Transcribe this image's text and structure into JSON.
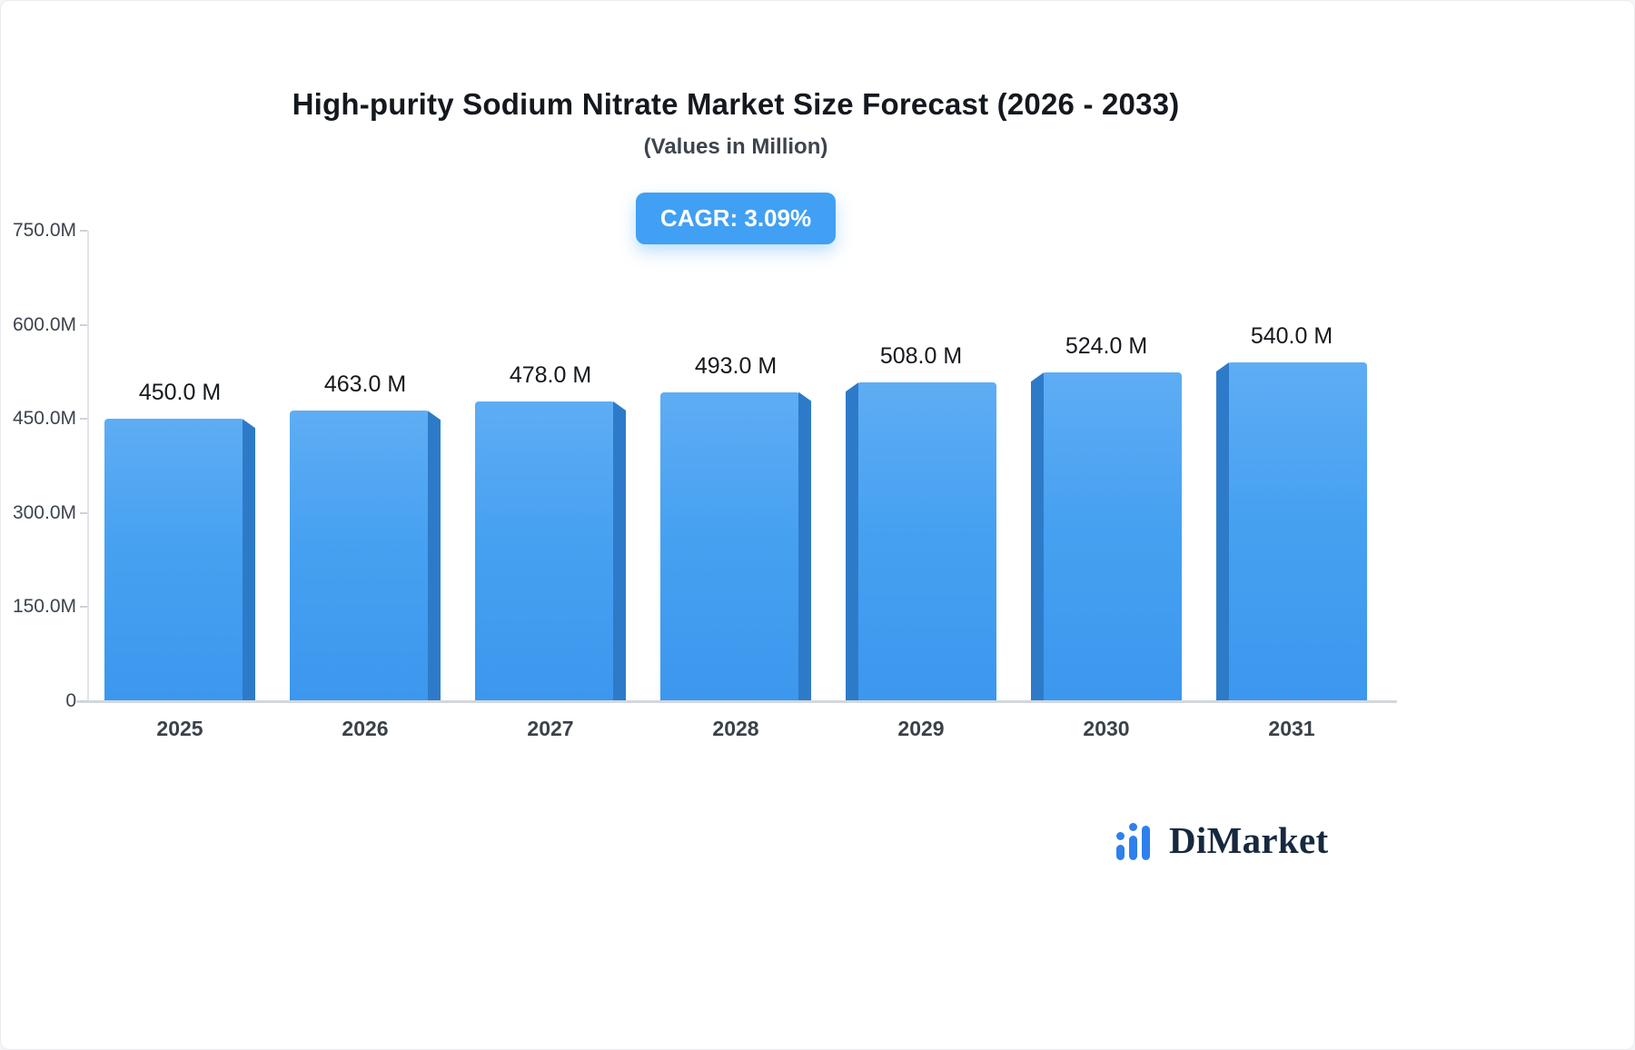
{
  "chart": {
    "title": "High-purity Sodium Nitrate Market Size Forecast (2026 - 2033)",
    "subtitle": "(Values in Million)",
    "cagr_label": "CAGR: 3.09%"
  },
  "chart_data": {
    "type": "bar",
    "categories": [
      "2025",
      "2026",
      "2027",
      "2028",
      "2029",
      "2030",
      "2031"
    ],
    "values": [
      450,
      463,
      478,
      493,
      508,
      524,
      540
    ],
    "value_labels": [
      "450.0 M",
      "463.0 M",
      "478.0 M",
      "493.0 M",
      "508.0 M",
      "524.0 M",
      "540.0 M"
    ],
    "title": "High-purity Sodium Nitrate Market Size Forecast (2026 - 2033)",
    "subtitle": "(Values in Million)",
    "xlabel": "",
    "ylabel": "",
    "ylim": [
      0,
      750
    ],
    "yticks": [
      0,
      150,
      300,
      450,
      600,
      750
    ],
    "ytick_labels": [
      "0",
      "150.0M",
      "300.0M",
      "450.0M",
      "600.0M",
      "750.0M"
    ],
    "grid": false,
    "legend": false,
    "bar_color": "#47A1F1",
    "bar_side_color": "#2D7BC8",
    "units": "Million"
  },
  "badge": {
    "color": "#41A0F3"
  },
  "logo": {
    "text": "DiMarket",
    "icon": "bar-chart-icon",
    "text_color": "#17293f",
    "icon_color": "#2F80ED"
  }
}
